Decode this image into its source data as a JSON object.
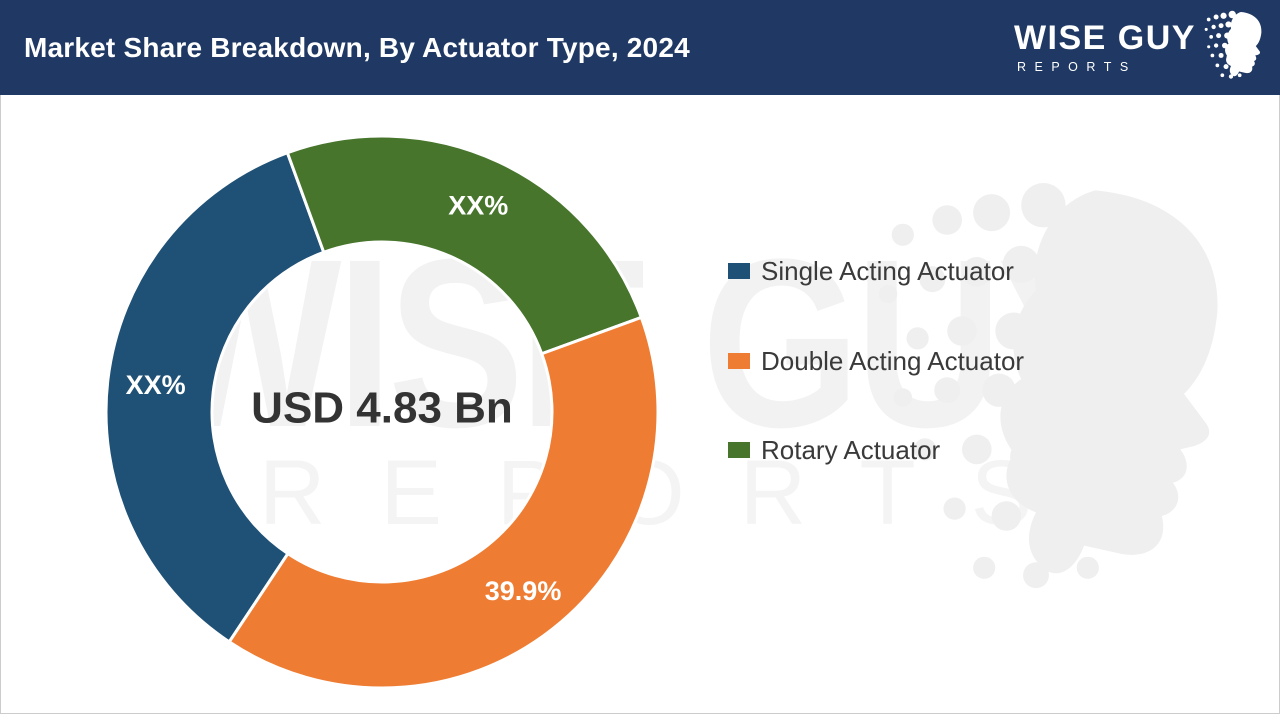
{
  "header": {
    "title": "Market Share Breakdown, By Actuator Type, 2024",
    "background": "#1F3864",
    "logo": {
      "line1": "WISE GUY",
      "line2": "REPORTS"
    }
  },
  "watermark": {
    "line1": "WISE GUY",
    "line2": "REPORTS"
  },
  "chart_data": {
    "type": "pie",
    "subtype": "donut",
    "title": "Market Share Breakdown, By Actuator Type, 2024",
    "center_label": "USD 4.83 Bn",
    "unit": "percent of market share",
    "legend_position": "right",
    "start_angle_deg_clockwise_from_top": 213.6,
    "draw_order": [
      0,
      2,
      1
    ],
    "slices": [
      {
        "label": "Single Acting Actuator",
        "display_value": "XX%",
        "value_pct": 35.1,
        "color": "#1F5176"
      },
      {
        "label": "Double Acting Actuator",
        "display_value": "39.9%",
        "value_pct": 39.9,
        "color": "#EE7D33"
      },
      {
        "label": "Rotary Actuator",
        "display_value": "XX%",
        "value_pct": 25.0,
        "color": "#46752B"
      }
    ],
    "separator_color": "#FFFFFF",
    "label_color": "#FFFFFF",
    "center_label_color": "#333333"
  }
}
